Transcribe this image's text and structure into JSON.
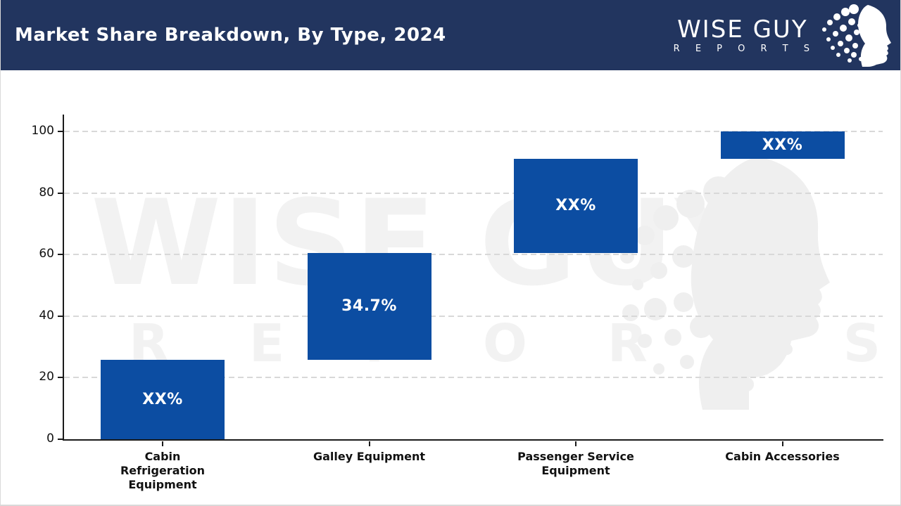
{
  "header": {
    "title": "Market Share Breakdown, By Type, 2024",
    "logo": {
      "line1": "WISE GUY",
      "line2": "R E P O R T S"
    }
  },
  "watermark": {
    "line1": "WISE GUY",
    "line2": "R E P O R T S"
  },
  "colors": {
    "header_bg": "#22355f",
    "bar": "#0c4da2",
    "gridline": "#d8d8d8",
    "axis": "#1a1a1a",
    "value_label": "#ffffff",
    "watermark": "#f2f2f2"
  },
  "chart_data": {
    "type": "bar",
    "subtype": "waterfall",
    "title": "Market Share Breakdown, By Type, 2024",
    "categories": [
      "Cabin Refrigeration Equipment",
      "Galley Equipment",
      "Passenger Service Equipment",
      "Cabin Accessories"
    ],
    "tick_lines": [
      [
        "Cabin",
        "Refrigeration",
        "Equipment"
      ],
      [
        "Galley Equipment"
      ],
      [
        "Passenger Service",
        "Equipment"
      ],
      [
        "Cabin Accessories"
      ]
    ],
    "segments": [
      {
        "category": "Cabin Refrigeration Equipment",
        "start": 0,
        "end": 25.8,
        "value": 25.8,
        "label": "XX%"
      },
      {
        "category": "Galley Equipment",
        "start": 25.8,
        "end": 60.5,
        "value": 34.7,
        "label": "34.7%"
      },
      {
        "category": "Passenger Service Equipment",
        "start": 60.5,
        "end": 91.2,
        "value": 30.7,
        "label": "XX%"
      },
      {
        "category": "Cabin Accessories",
        "start": 91.2,
        "end": 100,
        "value": 8.8,
        "label": "XX%"
      }
    ],
    "ylim": [
      0,
      100
    ],
    "yticks": [
      0,
      20,
      40,
      60,
      80,
      100
    ],
    "xlabel": "",
    "ylabel": "",
    "grid": "horizontal-dashed",
    "legend": "none",
    "bar_color": "#0c4da2",
    "value_label_color": "#ffffff"
  }
}
